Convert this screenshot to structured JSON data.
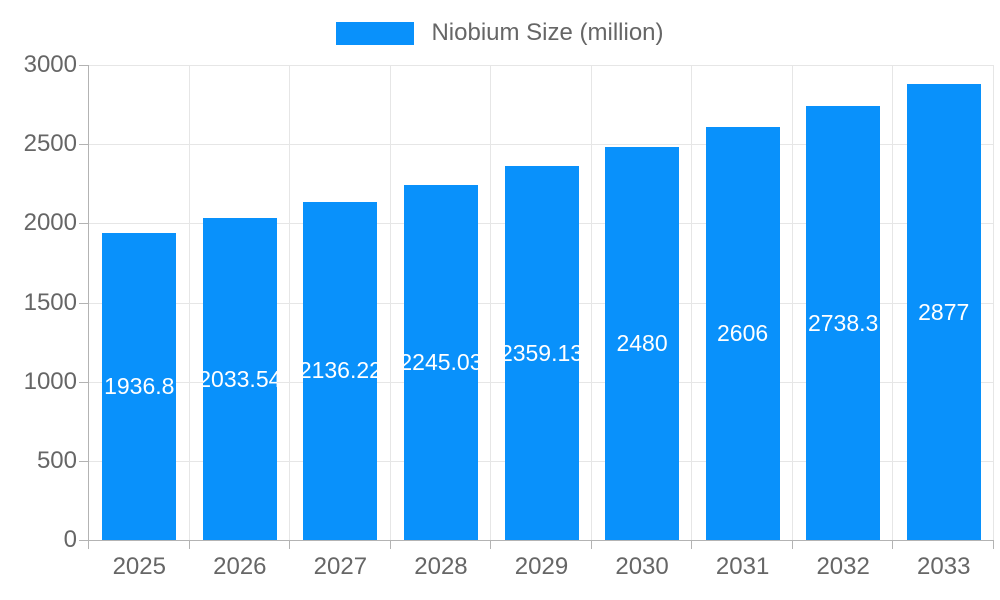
{
  "chart_data": {
    "type": "bar",
    "legend": {
      "label": "Niobium Size (million)",
      "position": "top"
    },
    "categories": [
      "2025",
      "2026",
      "2027",
      "2028",
      "2029",
      "2030",
      "2031",
      "2032",
      "2033"
    ],
    "series": [
      {
        "name": "Niobium Size (million)",
        "values": [
          1936.8,
          2033.54,
          2136.22,
          2245.03,
          2359.13,
          2480,
          2606,
          2738.3,
          2877
        ]
      }
    ],
    "value_labels": [
      "1936.8",
      "2033.54",
      "2136.22",
      "2245.03",
      "2359.13",
      "2480",
      "2606",
      "2738.3",
      "2877"
    ],
    "y_ticks": [
      0,
      500,
      1000,
      1500,
      2000,
      2500,
      3000
    ],
    "y_tick_labels": [
      "0",
      "500",
      "1000",
      "1500",
      "2000",
      "2500",
      "3000"
    ],
    "ylim": [
      0,
      3000
    ],
    "grid": true,
    "colors": {
      "bar": "#0991FB",
      "axis_text": "#666666",
      "grid_line": "#E6E6E6",
      "axis_line": "#B3B3B3",
      "value_label_text": "#FFFFFF"
    }
  }
}
